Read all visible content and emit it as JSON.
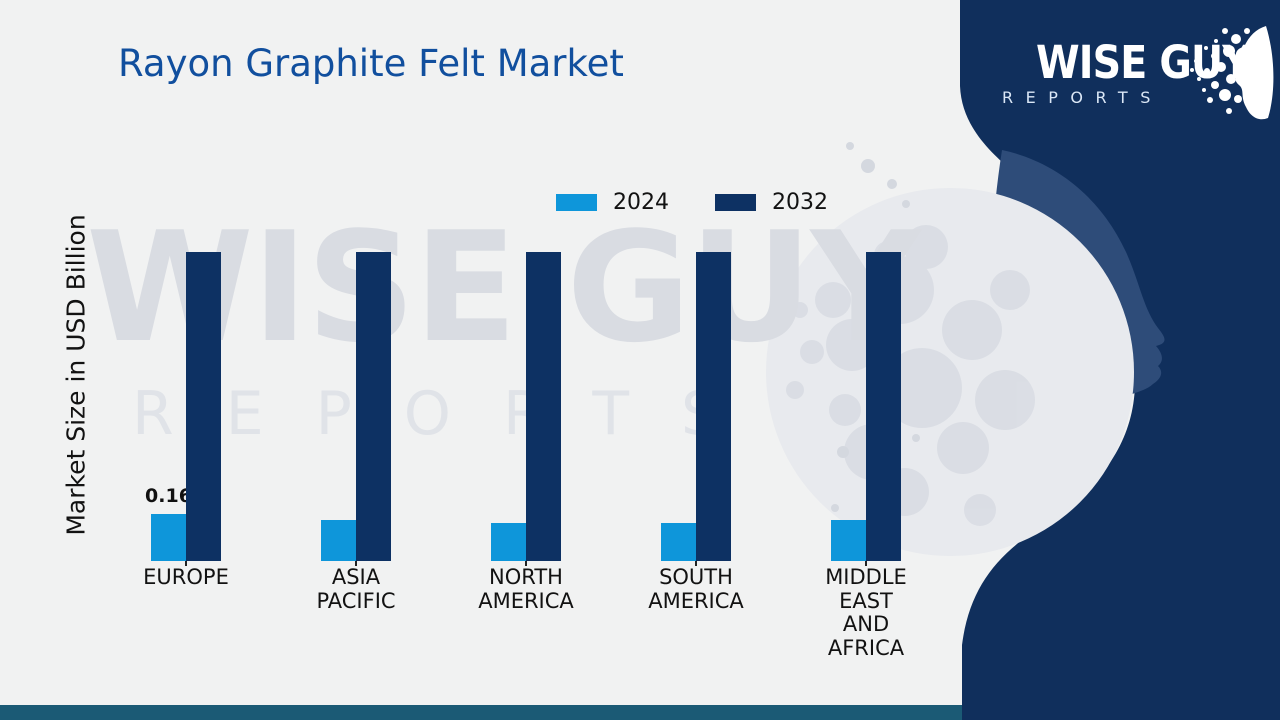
{
  "header": {
    "title": "Rayon Graphite Felt Market"
  },
  "brand": {
    "line1": "WISE GUY",
    "line2": "REPORTS"
  },
  "watermark": {
    "line1": "WISE GUY",
    "line2": "REPORTS"
  },
  "colors": {
    "title_blue": "#114f9e",
    "bar_2024_blue": "#0e96da",
    "bar_2032_navy": "#0d3163",
    "panel_navy": "#102f5c",
    "face_profile_blue": "#2e4c79",
    "footer_teal": "#1b5a75",
    "background_gray": "#f1f2f2",
    "watermark_gray": "#d9dce2"
  },
  "chart_data": {
    "type": "bar",
    "title": "Rayon Graphite Felt Market",
    "xlabel": "",
    "ylabel": "Market Size in USD Billion",
    "categories": [
      "EUROPE",
      "ASIA\nPACIFIC",
      "NORTH\nAMERICA",
      "SOUTH\nAMERICA",
      "MIDDLE\nEAST\nAND\nAFRICA"
    ],
    "series": [
      {
        "name": "2024",
        "color": "#0e96da",
        "values": [
          0.16,
          0.14,
          0.13,
          0.13,
          0.14
        ],
        "data_labels": [
          "0.16",
          "",
          "",
          "",
          ""
        ]
      },
      {
        "name": "2032",
        "color": "#0d3163",
        "values": [
          1.05,
          1.05,
          1.05,
          1.05,
          1.05
        ],
        "data_labels": [
          "",
          "",
          "",
          "",
          ""
        ]
      }
    ],
    "ylim": [
      0,
      1.05
    ],
    "grid": false,
    "y_axis_ticks_visible": false,
    "legend_position": "top-center"
  }
}
